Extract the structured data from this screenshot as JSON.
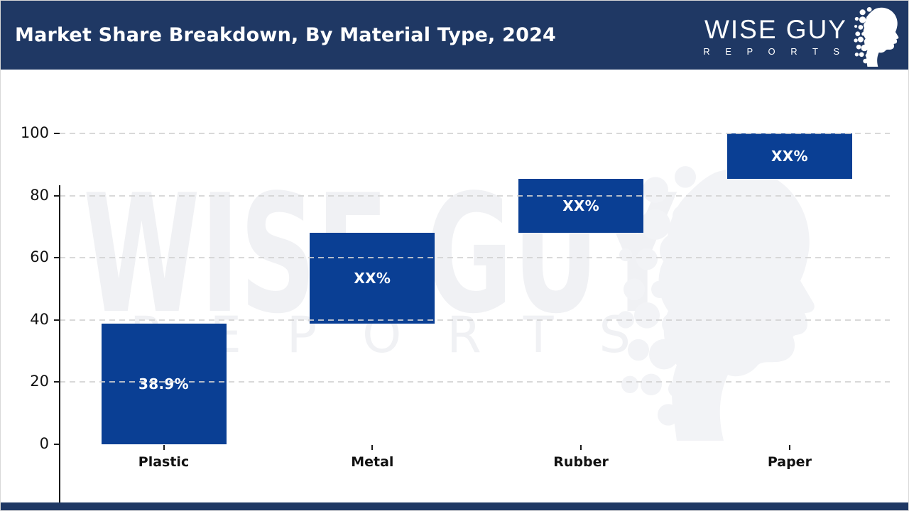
{
  "header": {
    "title": "Market Share Breakdown, By Material Type, 2024",
    "bg_color": "#1f3864",
    "logo": {
      "name": "WISE GUY",
      "sub": "R E P O R T S",
      "head_icon": "dotted-face-profile"
    }
  },
  "watermark": {
    "line1": "WISE GUY",
    "line2": "REPORTS",
    "head_icon": "dotted-face-profile",
    "color": "#f0f1f4"
  },
  "chart_data": {
    "type": "bar",
    "subtype": "waterfall",
    "title": "Market Share Breakdown, By Material Type, 2024",
    "categories": [
      "Plastic",
      "Metal",
      "Rubber",
      "Paper"
    ],
    "segments": [
      {
        "category": "Plastic",
        "start": 0,
        "end": 38.9,
        "label": "38.9%"
      },
      {
        "category": "Metal",
        "start": 38.9,
        "end": 68.0,
        "label": "XX%"
      },
      {
        "category": "Rubber",
        "start": 68.0,
        "end": 85.3,
        "label": "XX%"
      },
      {
        "category": "Paper",
        "start": 85.3,
        "end": 100.0,
        "label": "XX%"
      }
    ],
    "xlabel": "",
    "ylabel": "",
    "y_ticks": [
      0,
      20,
      40,
      60,
      80,
      100
    ],
    "ylim": [
      0,
      105
    ],
    "grid": "horizontal-dashed, drawn over bars",
    "legend": "none",
    "bar_color": "#0a3f94",
    "bar_label_color": "#ffffff",
    "gridline_color": "#d2d2d2",
    "axis_color": "#1a1a1a"
  }
}
